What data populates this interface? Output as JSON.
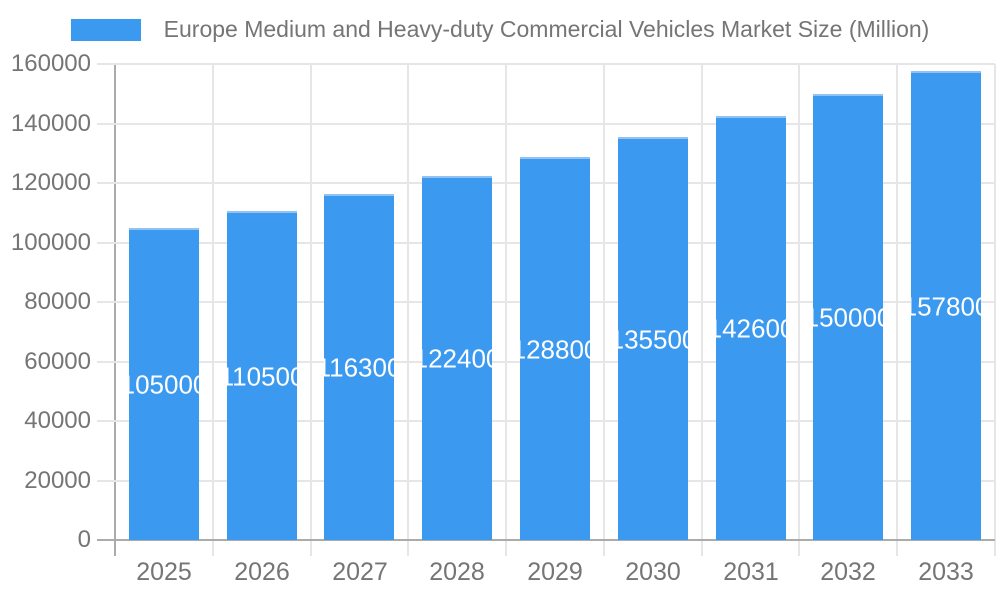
{
  "legend": {
    "swatch_color": "#3B99EF"
  },
  "chart_data": {
    "type": "bar",
    "title": "Europe Medium and Heavy-duty Commercial Vehicles Market Size (Million)",
    "categories": [
      "2025",
      "2026",
      "2027",
      "2028",
      "2029",
      "2030",
      "2031",
      "2032",
      "2033"
    ],
    "values": [
      105000,
      110500,
      116300,
      122400,
      128800,
      135500,
      142600,
      150000,
      157800
    ],
    "value_labels": [
      "105000",
      "110500",
      "116300",
      "122400",
      "128800",
      "135500",
      "142600",
      "150000",
      "157800"
    ],
    "xlabel": "",
    "ylabel": "",
    "ylim": [
      0,
      160000
    ],
    "ytick_step": 20000,
    "ytick_labels": [
      "0",
      "20000",
      "40000",
      "60000",
      "80000",
      "100000",
      "120000",
      "140000",
      "160000"
    ],
    "grid": true,
    "legend_position": "top",
    "colors": {
      "bar": "#3B99EF",
      "bar_top_edge": "#90C3F4",
      "gridline": "#E6E6E6",
      "axis_line": "#ABABAB",
      "label_text": "#757575",
      "value_text": "#FFFFFF",
      "background": "#FFFFFF"
    }
  }
}
